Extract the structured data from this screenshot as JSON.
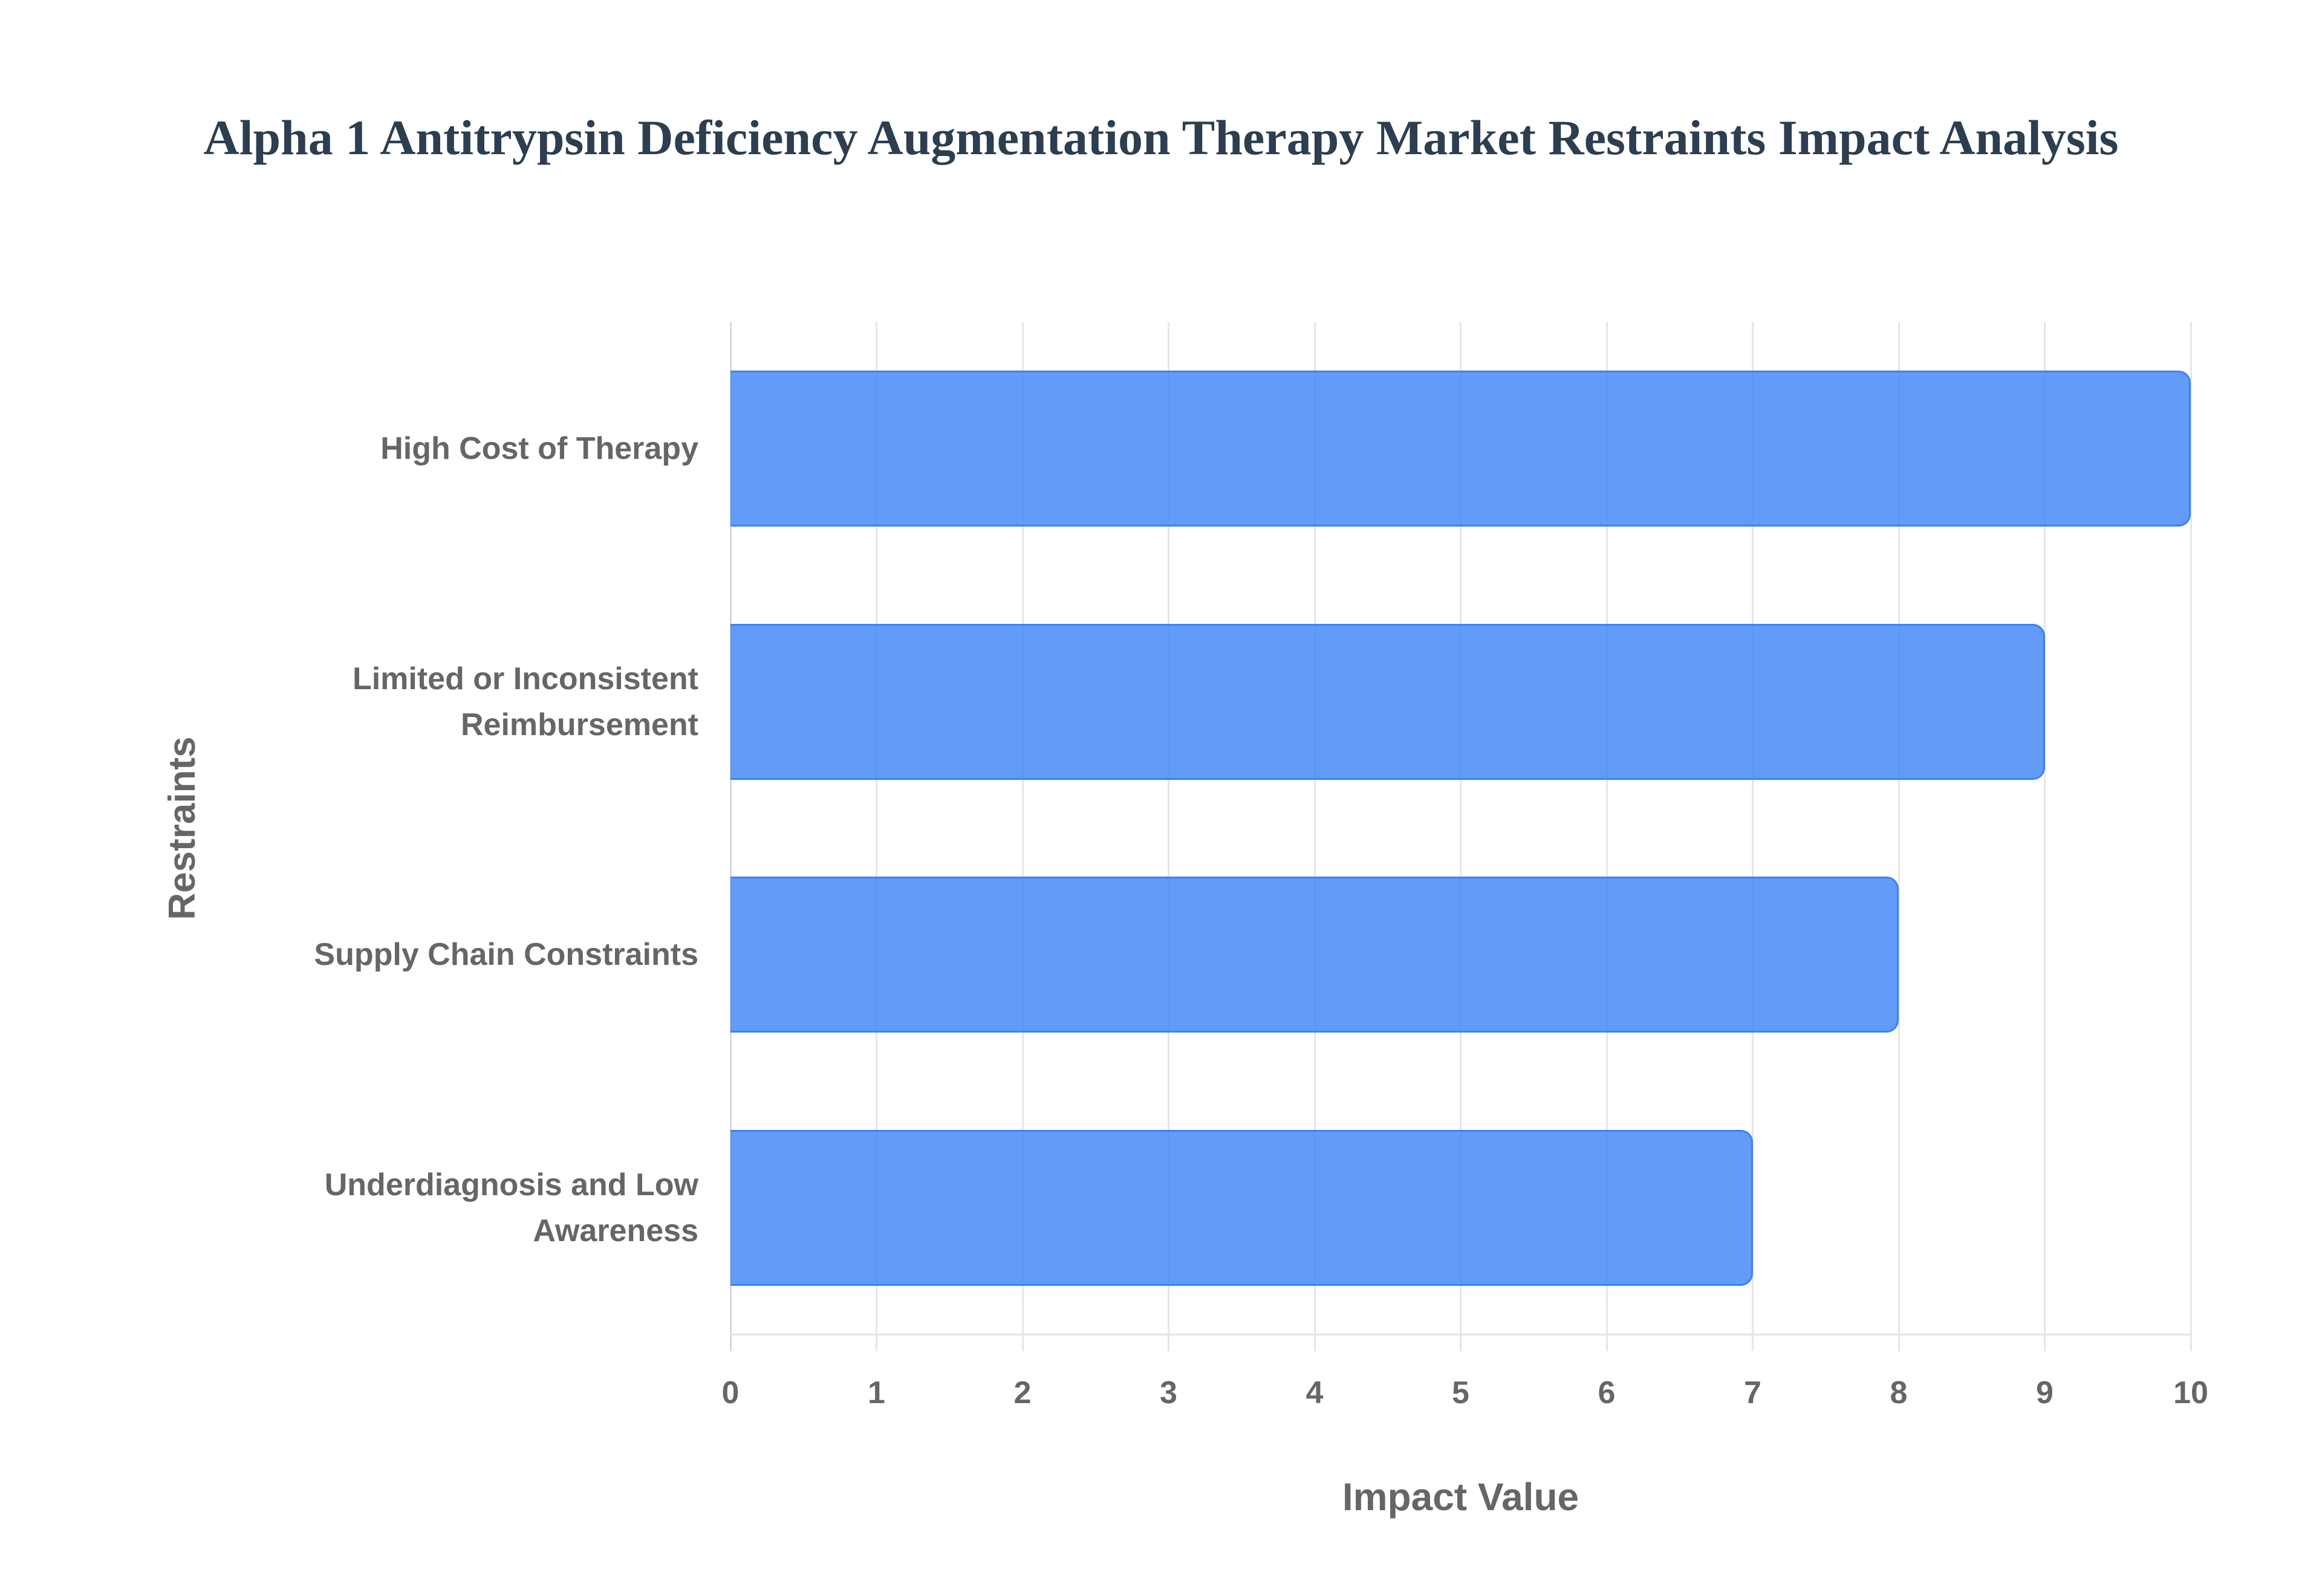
{
  "title": "Alpha 1 Antitrypsin Deficiency Augmentation Therapy Market Restraints Impact Analysis",
  "colors": {
    "bar_fill": "#639AF6",
    "bar_border": "#3B82F6",
    "title": "#2C3E50",
    "axis_text": "#666666",
    "grid": "#E6E6E6"
  },
  "axes": {
    "x_title": "Impact Value",
    "y_title": "Restraints",
    "x_ticks": [
      "0",
      "1",
      "2",
      "3",
      "4",
      "5",
      "6",
      "7",
      "8",
      "9",
      "10"
    ]
  },
  "categories": [
    {
      "label_lines": [
        "High Cost of Therapy"
      ],
      "value": 10
    },
    {
      "label_lines": [
        "Limited or Inconsistent",
        "Reimbursement"
      ],
      "value": 9
    },
    {
      "label_lines": [
        "Supply Chain Constraints"
      ],
      "value": 8
    },
    {
      "label_lines": [
        "Underdiagnosis and Low",
        "Awareness"
      ],
      "value": 7
    }
  ],
  "chart_data": {
    "type": "bar",
    "orientation": "horizontal",
    "title": "Alpha 1 Antitrypsin Deficiency Augmentation Therapy Market Restraints Impact Analysis",
    "categories": [
      "High Cost of Therapy",
      "Limited or Inconsistent Reimbursement",
      "Supply Chain Constraints",
      "Underdiagnosis and Low Awareness"
    ],
    "values": [
      10,
      9,
      8,
      7
    ],
    "xlabel": "Impact Value",
    "ylabel": "Restraints",
    "xlim": [
      0,
      10
    ],
    "x_ticks": [
      0,
      1,
      2,
      3,
      4,
      5,
      6,
      7,
      8,
      9,
      10
    ],
    "grid": {
      "vertical": true,
      "horizontal": false
    },
    "legend": null
  }
}
